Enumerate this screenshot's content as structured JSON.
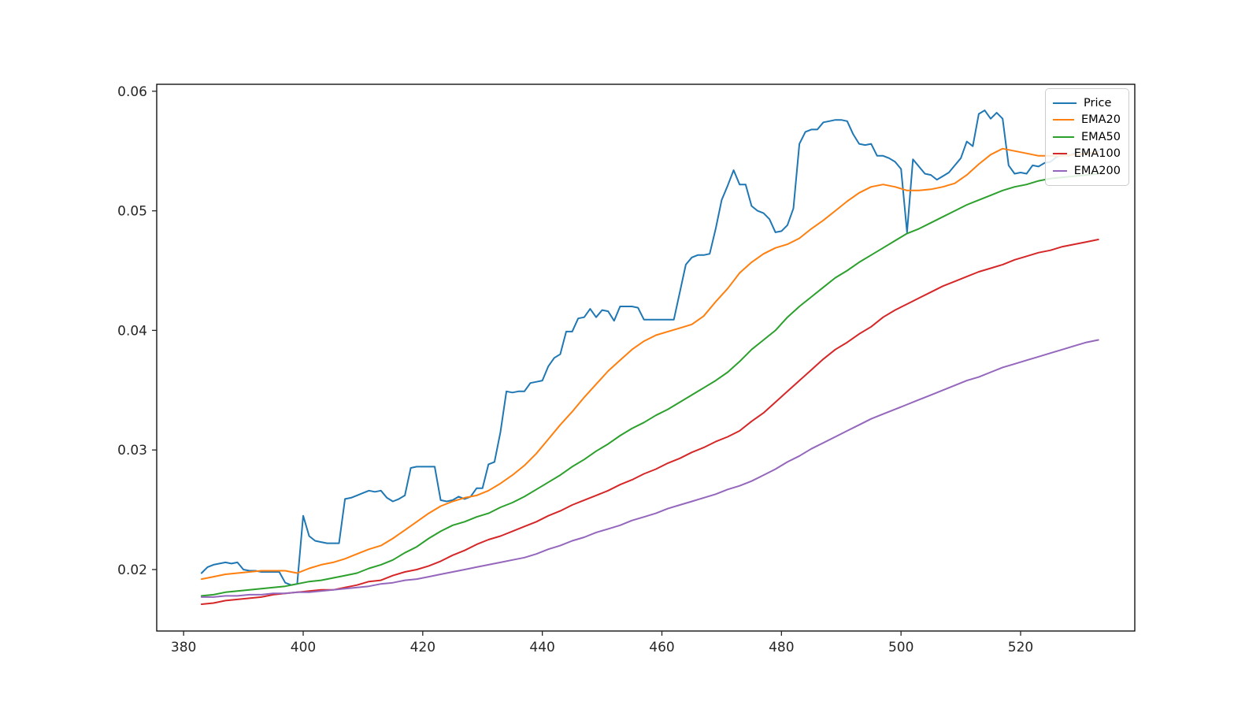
{
  "figure": {
    "background": "#ffffff",
    "spine_color": "#000000",
    "tick_color": "#262626"
  },
  "legend": {
    "position": "upper-right",
    "entries": [
      {
        "label": "Price",
        "color": "#1f77b4"
      },
      {
        "label": "EMA20",
        "color": "#ff7f0e"
      },
      {
        "label": "EMA50",
        "color": "#2ca02c"
      },
      {
        "label": "EMA100",
        "color": "#d62728"
      },
      {
        "label": "EMA200",
        "color": "#9467bd"
      }
    ]
  },
  "chart_data": {
    "type": "line",
    "title": "",
    "xlabel": "",
    "ylabel": "",
    "grid": false,
    "xlim": [
      375.5,
      539.1
    ],
    "ylim": [
      0.01486,
      0.06058
    ],
    "x_ticks": [
      380,
      400,
      420,
      440,
      460,
      480,
      500,
      520
    ],
    "y_ticks": [
      0.02,
      0.03,
      0.04,
      0.05,
      0.06
    ],
    "series": [
      {
        "name": "Price",
        "color": "#1f77b4",
        "x": [
          383,
          384,
          385,
          386,
          387,
          388,
          389,
          390,
          391,
          392,
          393,
          394,
          395,
          396,
          397,
          398,
          399,
          400,
          401,
          402,
          403,
          404,
          405,
          406,
          407,
          408,
          409,
          410,
          411,
          412,
          413,
          414,
          415,
          416,
          417,
          418,
          419,
          420,
          421,
          422,
          423,
          424,
          425,
          426,
          427,
          428,
          429,
          430,
          431,
          432,
          433,
          434,
          435,
          436,
          437,
          438,
          439,
          440,
          441,
          442,
          443,
          444,
          445,
          446,
          447,
          448,
          449,
          450,
          451,
          452,
          453,
          454,
          455,
          456,
          457,
          458,
          459,
          460,
          461,
          462,
          463,
          464,
          465,
          466,
          467,
          468,
          469,
          470,
          471,
          472,
          473,
          474,
          475,
          476,
          477,
          478,
          479,
          480,
          481,
          482,
          483,
          484,
          485,
          486,
          487,
          488,
          489,
          490,
          491,
          492,
          493,
          494,
          495,
          496,
          497,
          498,
          499,
          500,
          501,
          502,
          503,
          504,
          505,
          506,
          507,
          508,
          509,
          510,
          511,
          512,
          513,
          514,
          515,
          516,
          517,
          518,
          519,
          520,
          521,
          522,
          523,
          524,
          525,
          526,
          527,
          528,
          529,
          530,
          531,
          532,
          533
        ],
        "y": [
          0.0197,
          0.0202,
          0.0204,
          0.0205,
          0.0206,
          0.0205,
          0.0206,
          0.02,
          0.0199,
          0.0199,
          0.0198,
          0.0198,
          0.0198,
          0.0198,
          0.0189,
          0.0187,
          0.0188,
          0.0245,
          0.0228,
          0.0224,
          0.0223,
          0.0222,
          0.0222,
          0.0222,
          0.0259,
          0.026,
          0.0262,
          0.0264,
          0.0266,
          0.0265,
          0.0266,
          0.026,
          0.0257,
          0.0259,
          0.0262,
          0.0285,
          0.0286,
          0.0286,
          0.0286,
          0.0286,
          0.0258,
          0.0257,
          0.0258,
          0.0261,
          0.0259,
          0.0261,
          0.0268,
          0.0268,
          0.0288,
          0.029,
          0.0315,
          0.0349,
          0.0348,
          0.0349,
          0.0349,
          0.0356,
          0.0357,
          0.0358,
          0.037,
          0.0377,
          0.038,
          0.0399,
          0.0399,
          0.041,
          0.0411,
          0.0418,
          0.0411,
          0.0417,
          0.0416,
          0.0408,
          0.042,
          0.042,
          0.042,
          0.0419,
          0.0409,
          0.0409,
          0.0409,
          0.0409,
          0.0409,
          0.0409,
          0.0432,
          0.0455,
          0.0461,
          0.0463,
          0.0463,
          0.0464,
          0.0485,
          0.0509,
          0.0521,
          0.0534,
          0.0522,
          0.0522,
          0.0504,
          0.05,
          0.0498,
          0.0493,
          0.0482,
          0.0483,
          0.0488,
          0.0502,
          0.0556,
          0.0566,
          0.0568,
          0.0568,
          0.0574,
          0.0575,
          0.0576,
          0.0576,
          0.0575,
          0.0564,
          0.0556,
          0.0555,
          0.0556,
          0.0546,
          0.0546,
          0.0544,
          0.0541,
          0.0535,
          0.0482,
          0.0543,
          0.0537,
          0.0531,
          0.053,
          0.0526,
          0.0529,
          0.0532,
          0.0538,
          0.0544,
          0.0558,
          0.0554,
          0.0581,
          0.0584,
          0.0577,
          0.0582,
          0.0577,
          0.0538,
          0.0531,
          0.0532,
          0.0531,
          0.0538,
          0.0537,
          0.054,
          0.0541,
          0.0545,
          0.0547,
          0.0546,
          0.0548,
          0.0547,
          0.0549,
          0.0548,
          0.055
        ]
      },
      {
        "name": "EMA20",
        "color": "#ff7f0e",
        "x": [
          383,
          385,
          387,
          389,
          391,
          393,
          395,
          397,
          399,
          401,
          403,
          405,
          407,
          409,
          411,
          413,
          415,
          417,
          419,
          421,
          423,
          425,
          427,
          429,
          431,
          433,
          435,
          437,
          439,
          441,
          443,
          445,
          447,
          449,
          451,
          453,
          455,
          457,
          459,
          461,
          463,
          465,
          467,
          469,
          471,
          473,
          475,
          477,
          479,
          481,
          483,
          485,
          487,
          489,
          491,
          493,
          495,
          497,
          499,
          501,
          503,
          505,
          507,
          509,
          511,
          513,
          515,
          517,
          519,
          521,
          523,
          525,
          527,
          529,
          531,
          533
        ],
        "y": [
          0.0192,
          0.0194,
          0.0196,
          0.0197,
          0.0198,
          0.0199,
          0.0199,
          0.0199,
          0.0197,
          0.0201,
          0.0204,
          0.0206,
          0.0209,
          0.0213,
          0.0217,
          0.022,
          0.0226,
          0.0233,
          0.024,
          0.0247,
          0.0253,
          0.0257,
          0.026,
          0.0262,
          0.0266,
          0.0272,
          0.0279,
          0.0287,
          0.0297,
          0.0309,
          0.0321,
          0.0332,
          0.0344,
          0.0355,
          0.0366,
          0.0375,
          0.0384,
          0.0391,
          0.0396,
          0.0399,
          0.0402,
          0.0405,
          0.0412,
          0.0424,
          0.0435,
          0.0448,
          0.0457,
          0.0464,
          0.0469,
          0.0472,
          0.0477,
          0.0485,
          0.0492,
          0.05,
          0.0508,
          0.0515,
          0.052,
          0.0522,
          0.052,
          0.0517,
          0.0517,
          0.0518,
          0.052,
          0.0523,
          0.053,
          0.0539,
          0.0547,
          0.0552,
          0.055,
          0.0548,
          0.0546,
          0.0546,
          0.0546,
          0.0547,
          0.0548,
          0.0549
        ]
      },
      {
        "name": "EMA50",
        "color": "#2ca02c",
        "x": [
          383,
          385,
          387,
          389,
          391,
          393,
          395,
          397,
          399,
          401,
          403,
          405,
          407,
          409,
          411,
          413,
          415,
          417,
          419,
          421,
          423,
          425,
          427,
          429,
          431,
          433,
          435,
          437,
          439,
          441,
          443,
          445,
          447,
          449,
          451,
          453,
          455,
          457,
          459,
          461,
          463,
          465,
          467,
          469,
          471,
          473,
          475,
          477,
          479,
          481,
          483,
          485,
          487,
          489,
          491,
          493,
          495,
          497,
          499,
          501,
          503,
          505,
          507,
          509,
          511,
          513,
          515,
          517,
          519,
          521,
          523,
          525,
          527,
          529,
          531,
          533
        ],
        "y": [
          0.0178,
          0.0179,
          0.0181,
          0.0182,
          0.0183,
          0.0184,
          0.0185,
          0.0186,
          0.0188,
          0.019,
          0.0191,
          0.0193,
          0.0195,
          0.0197,
          0.0201,
          0.0204,
          0.0208,
          0.0214,
          0.0219,
          0.0226,
          0.0232,
          0.0237,
          0.024,
          0.0244,
          0.0247,
          0.0252,
          0.0256,
          0.0261,
          0.0267,
          0.0273,
          0.0279,
          0.0286,
          0.0292,
          0.0299,
          0.0305,
          0.0312,
          0.0318,
          0.0323,
          0.0329,
          0.0334,
          0.034,
          0.0346,
          0.0352,
          0.0358,
          0.0365,
          0.0374,
          0.0384,
          0.0392,
          0.04,
          0.0411,
          0.042,
          0.0428,
          0.0436,
          0.0444,
          0.045,
          0.0457,
          0.0463,
          0.0469,
          0.0475,
          0.0481,
          0.0485,
          0.049,
          0.0495,
          0.05,
          0.0505,
          0.0509,
          0.0513,
          0.0517,
          0.052,
          0.0522,
          0.0525,
          0.0527,
          0.0528,
          0.0529,
          0.053,
          0.0531
        ]
      },
      {
        "name": "EMA100",
        "color": "#d62728",
        "x": [
          383,
          385,
          387,
          389,
          391,
          393,
          395,
          397,
          399,
          401,
          403,
          405,
          407,
          409,
          411,
          413,
          415,
          417,
          419,
          421,
          423,
          425,
          427,
          429,
          431,
          433,
          435,
          437,
          439,
          441,
          443,
          445,
          447,
          449,
          451,
          453,
          455,
          457,
          459,
          461,
          463,
          465,
          467,
          469,
          471,
          473,
          475,
          477,
          479,
          481,
          483,
          485,
          487,
          489,
          491,
          493,
          495,
          497,
          499,
          501,
          503,
          505,
          507,
          509,
          511,
          513,
          515,
          517,
          519,
          521,
          523,
          525,
          527,
          529,
          531,
          533
        ],
        "y": [
          0.0171,
          0.0172,
          0.0174,
          0.0175,
          0.0176,
          0.0177,
          0.0179,
          0.018,
          0.0181,
          0.0182,
          0.0183,
          0.0183,
          0.0185,
          0.0187,
          0.019,
          0.0191,
          0.0195,
          0.0198,
          0.02,
          0.0203,
          0.0207,
          0.0212,
          0.0216,
          0.0221,
          0.0225,
          0.0228,
          0.0232,
          0.0236,
          0.024,
          0.0245,
          0.0249,
          0.0254,
          0.0258,
          0.0262,
          0.0266,
          0.0271,
          0.0275,
          0.028,
          0.0284,
          0.0289,
          0.0293,
          0.0298,
          0.0302,
          0.0307,
          0.0311,
          0.0316,
          0.0324,
          0.0331,
          0.034,
          0.0349,
          0.0358,
          0.0367,
          0.0376,
          0.0384,
          0.039,
          0.0397,
          0.0403,
          0.0411,
          0.0417,
          0.0422,
          0.0427,
          0.0432,
          0.0437,
          0.0441,
          0.0445,
          0.0449,
          0.0452,
          0.0455,
          0.0459,
          0.0462,
          0.0465,
          0.0467,
          0.047,
          0.0472,
          0.0474,
          0.0476
        ]
      },
      {
        "name": "EMA200",
        "color": "#9467bd",
        "x": [
          383,
          385,
          387,
          389,
          391,
          393,
          395,
          397,
          399,
          401,
          403,
          405,
          407,
          409,
          411,
          413,
          415,
          417,
          419,
          421,
          423,
          425,
          427,
          429,
          431,
          433,
          435,
          437,
          439,
          441,
          443,
          445,
          447,
          449,
          451,
          453,
          455,
          457,
          459,
          461,
          463,
          465,
          467,
          469,
          471,
          473,
          475,
          477,
          479,
          481,
          483,
          485,
          487,
          489,
          491,
          493,
          495,
          497,
          499,
          501,
          503,
          505,
          507,
          509,
          511,
          513,
          515,
          517,
          519,
          521,
          523,
          525,
          527,
          529,
          531,
          533
        ],
        "y": [
          0.0177,
          0.0177,
          0.0178,
          0.0178,
          0.0179,
          0.0179,
          0.018,
          0.018,
          0.0181,
          0.0181,
          0.0182,
          0.0183,
          0.0184,
          0.0185,
          0.0186,
          0.0188,
          0.0189,
          0.0191,
          0.0192,
          0.0194,
          0.0196,
          0.0198,
          0.02,
          0.0202,
          0.0204,
          0.0206,
          0.0208,
          0.021,
          0.0213,
          0.0217,
          0.022,
          0.0224,
          0.0227,
          0.0231,
          0.0234,
          0.0237,
          0.0241,
          0.0244,
          0.0247,
          0.0251,
          0.0254,
          0.0257,
          0.026,
          0.0263,
          0.0267,
          0.027,
          0.0274,
          0.0279,
          0.0284,
          0.029,
          0.0295,
          0.0301,
          0.0306,
          0.0311,
          0.0316,
          0.0321,
          0.0326,
          0.033,
          0.0334,
          0.0338,
          0.0342,
          0.0346,
          0.035,
          0.0354,
          0.0358,
          0.0361,
          0.0365,
          0.0369,
          0.0372,
          0.0375,
          0.0378,
          0.0381,
          0.0384,
          0.0387,
          0.039,
          0.0392
        ]
      }
    ]
  }
}
